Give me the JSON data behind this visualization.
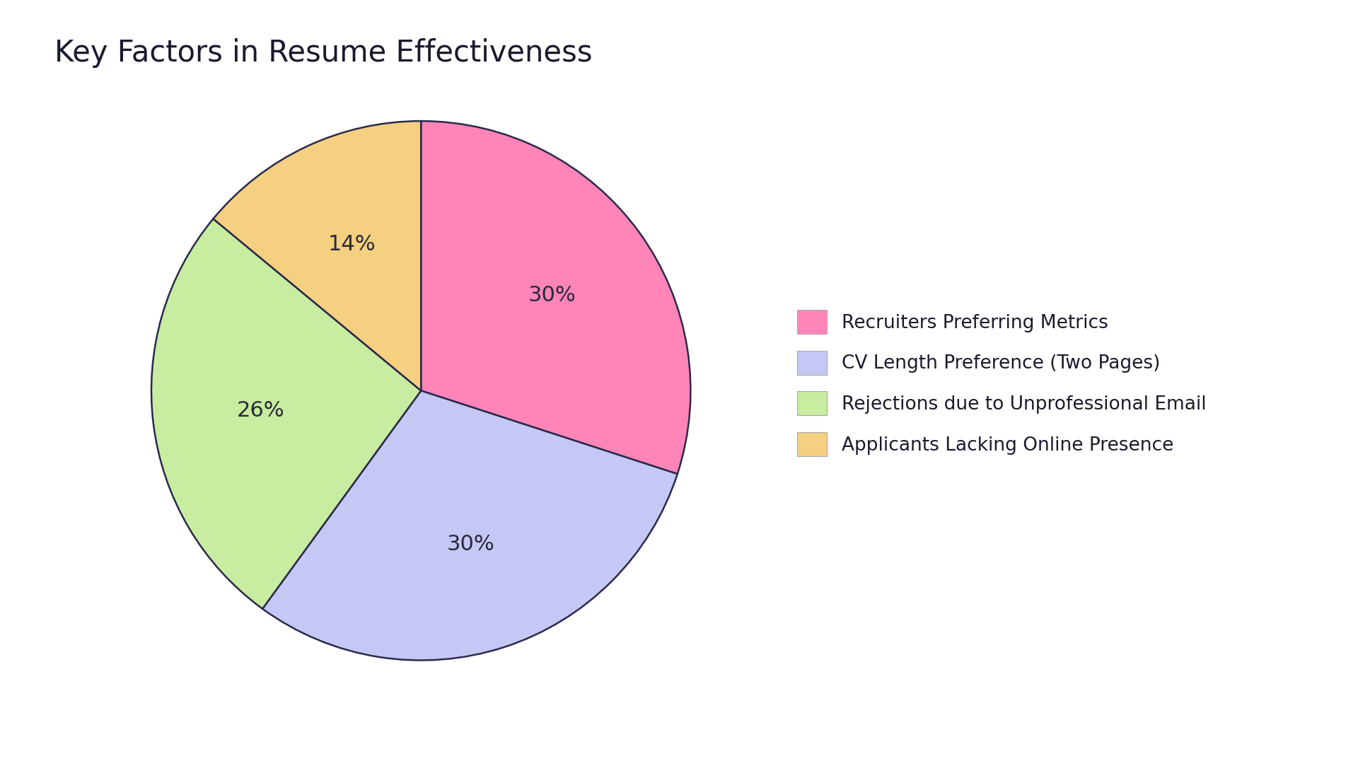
{
  "title": "Key Factors in Resume Effectiveness",
  "slices": [
    {
      "label": "Recruiters Preferring Metrics",
      "value": 30,
      "color": "#FF85B8",
      "pct_label": "30%"
    },
    {
      "label": "CV Length Preference (Two Pages)",
      "value": 30,
      "color": "#C5C8F5",
      "pct_label": "30%"
    },
    {
      "label": "Rejections due to Unprofessional Email",
      "value": 26,
      "color": "#C8ECA0",
      "pct_label": "26%"
    },
    {
      "label": "Applicants Lacking Online Presence",
      "value": 14,
      "color": "#F5D080",
      "pct_label": "14%"
    }
  ],
  "startangle": 90,
  "title_fontsize": 30,
  "label_fontsize": 22,
  "legend_fontsize": 19,
  "background_color": "#FFFFFF",
  "edge_color": "#2a2a4a",
  "edge_linewidth": 1.8
}
